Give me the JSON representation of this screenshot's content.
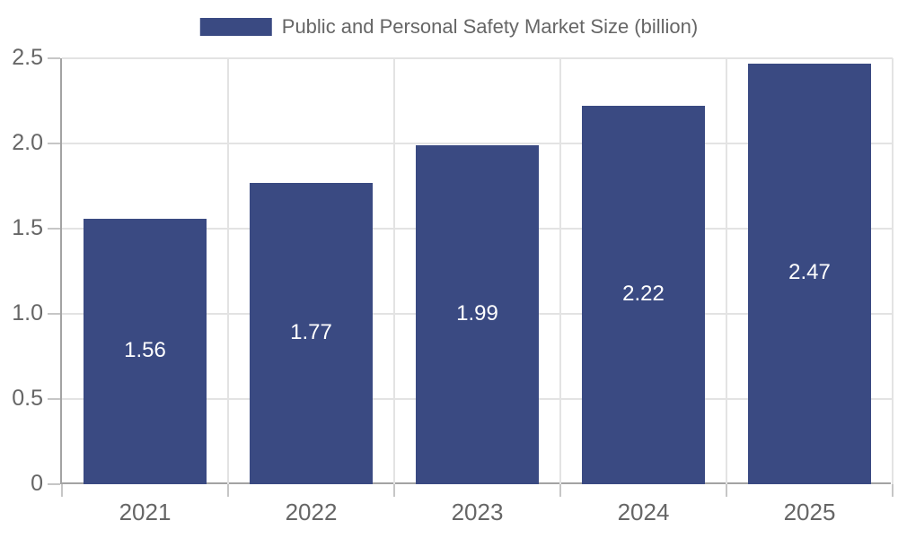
{
  "legend": {
    "label": "Public and Personal Safety Market Size (billion)"
  },
  "colors": {
    "bar": "#3a4a82",
    "axis_text": "#666666",
    "legend_text": "#666666",
    "value_label": "#ffffff",
    "grid": "#e3e3e3",
    "spine": "#a3a3a3",
    "tick": "#c6c6c6",
    "background": "#ffffff"
  },
  "chart_data": {
    "type": "bar",
    "title": "Public and Personal Safety Market Size (billion)",
    "categories": [
      "2021",
      "2022",
      "2023",
      "2024",
      "2025"
    ],
    "values": [
      1.56,
      1.77,
      1.99,
      2.22,
      2.47
    ],
    "bar_labels": [
      "1.56",
      "1.77",
      "1.99",
      "2.22",
      "2.47"
    ],
    "xlabel": "",
    "ylabel": "",
    "ylim": [
      0,
      2.5
    ],
    "yticks": [
      {
        "value": 0,
        "label": "0"
      },
      {
        "value": 0.5,
        "label": "0.5"
      },
      {
        "value": 1,
        "label": "1.0"
      },
      {
        "value": 1.5,
        "label": "1.5"
      },
      {
        "value": 2,
        "label": "2.0"
      },
      {
        "value": 2.5,
        "label": "2.5"
      }
    ],
    "grid": true,
    "legend_position": "top-center"
  }
}
